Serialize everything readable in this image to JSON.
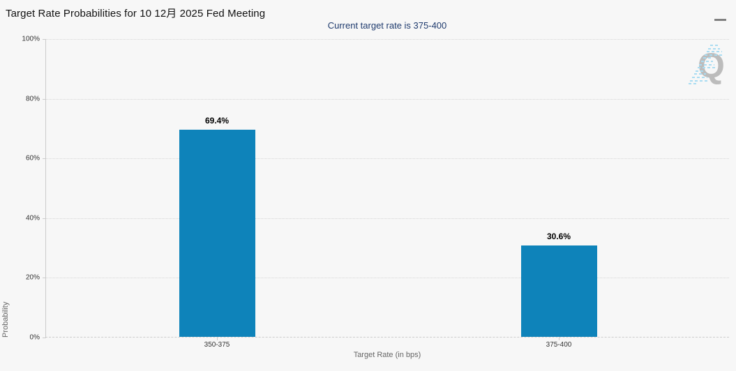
{
  "header": {
    "title": "Target Rate Probabilities for 10 12月 2025 Fed Meeting",
    "menu_icon": "hamburger-icon"
  },
  "subtitle": "Current target rate is 375-400",
  "watermark_letter": "Q",
  "colors": {
    "background": "#f7f7f7",
    "bar": "#0e83ba",
    "title_text": "#111111",
    "subtitle_text": "#1e3a6d",
    "axis_tick_text": "#333333",
    "axis_title_text": "#666666",
    "gridline": "#d6d6d6",
    "menu_icon": "#808080",
    "watermark_q": "#bcbcbc",
    "watermark_dashes": "#a9dcf2"
  },
  "chart_data": {
    "type": "bar",
    "title": "Target Rate Probabilities for 10 12月 2025 Fed Meeting",
    "subtitle": "Current target rate is 375-400",
    "categories": [
      "350-375",
      "375-400"
    ],
    "values": [
      69.4,
      30.6
    ],
    "value_labels": [
      "69.4%",
      "30.6%"
    ],
    "xlabel": "Target Rate (in bps)",
    "ylabel": "Probability",
    "ylim": [
      0,
      100
    ],
    "yticks": [
      "0%",
      "20%",
      "40%",
      "60%",
      "80%",
      "100%"
    ],
    "grid": "horizontal-dotted",
    "legend": "none"
  }
}
